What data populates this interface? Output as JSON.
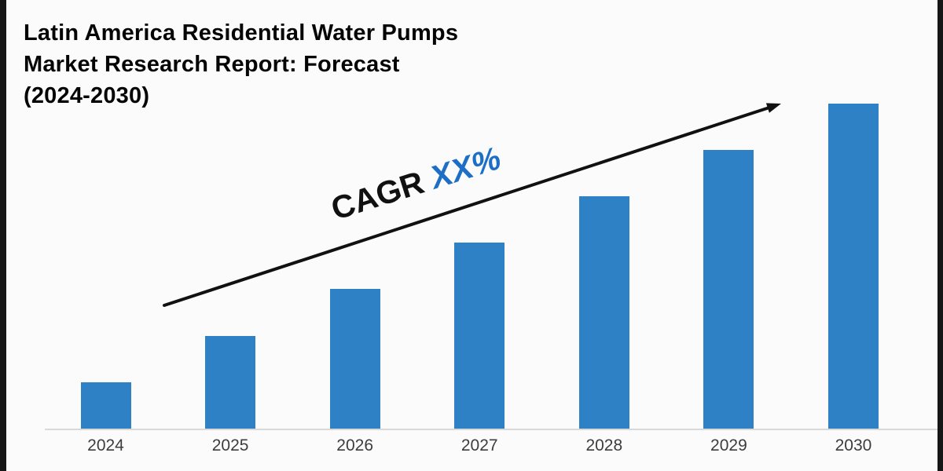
{
  "page": {
    "background_color": "#FBFBFB",
    "edge_strip_color": "#161616"
  },
  "title": {
    "lines": [
      "Latin America Residential Water Pumps",
      "Market Research Report: Forecast",
      "(2024-2030)"
    ],
    "color": "#050505"
  },
  "cagr_annotation": {
    "prefix": "CAGR ",
    "value": "XX%",
    "prefix_color": "#111111",
    "value_color": "#1D6FC5"
  },
  "chart_data": {
    "type": "bar",
    "title": "Latin America Residential Water Pumps Market Research Report: Forecast (2024-2030)",
    "categories": [
      "2024",
      "2025",
      "2026",
      "2027",
      "2028",
      "2029",
      "2030"
    ],
    "values": [
      1,
      2,
      3,
      4,
      5,
      6,
      7
    ],
    "value_note": "relative units; no y-axis or data labels shown, bar heights grow linearly 1:2:3:4:5:6:7",
    "xlabel": "",
    "ylabel": "",
    "ylim": [
      0,
      7.5
    ],
    "gridlines": false,
    "legend": false,
    "bar_color": "#2E81C4",
    "axis_line_color": "#D9D9D9",
    "tick_label_color": "#3D3D3D",
    "annotations": [
      {
        "type": "arrow",
        "description": "straight black trend arrow rising left-to-right above the bars"
      },
      {
        "type": "text",
        "text": "CAGR XX%",
        "rotation_deg": -17.5
      }
    ]
  }
}
